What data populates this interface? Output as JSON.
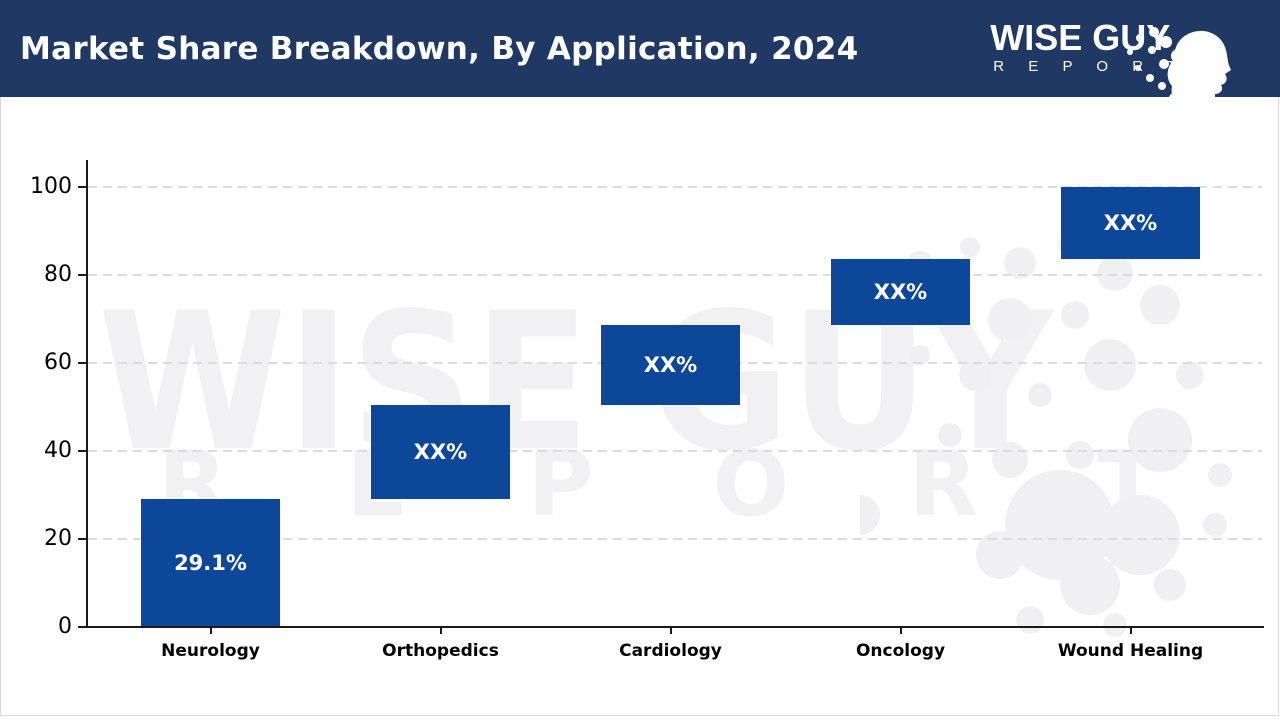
{
  "header": {
    "title": "Market Share Breakdown, By Application, 2024",
    "logo": {
      "wordmark": "WISE GUY",
      "subtext": "R E P O R T S"
    }
  },
  "watermark": {
    "wordmark": "WISE GUY",
    "subtext": "R E P O R T S"
  },
  "chart_data": {
    "type": "bar",
    "subtype": "waterfall",
    "title": "Market Share Breakdown, By Application, 2024",
    "categories": [
      "Neurology",
      "Orthopedics",
      "Cardiology",
      "Oncology",
      "Wound Healing"
    ],
    "segments": [
      {
        "category": "Neurology",
        "start": 0,
        "end": 29.1,
        "label": "29.1%"
      },
      {
        "category": "Orthopedics",
        "start": 29.1,
        "end": 50.5,
        "label": "XX%"
      },
      {
        "category": "Cardiology",
        "start": 50.5,
        "end": 68.6,
        "label": "XX%"
      },
      {
        "category": "Oncology",
        "start": 68.6,
        "end": 83.6,
        "label": "XX%"
      },
      {
        "category": "Wound Healing",
        "start": 83.6,
        "end": 100,
        "label": "XX%"
      }
    ],
    "yticks": [
      0,
      20,
      40,
      60,
      80,
      100
    ],
    "ylim": [
      0,
      106
    ],
    "xlabel": "",
    "ylabel": "",
    "grid": "horizontal-dashed",
    "legend": "none",
    "colors": {
      "bar": "#0d4799",
      "header_background": "#1f3864",
      "title_text": "#ffffff",
      "bar_label_text": "#ffffff",
      "gridline": "#dcdcdc",
      "axis": "#1a1a1a",
      "watermark": "#f1f1f4",
      "frame_border": "#d9d9d9"
    }
  }
}
